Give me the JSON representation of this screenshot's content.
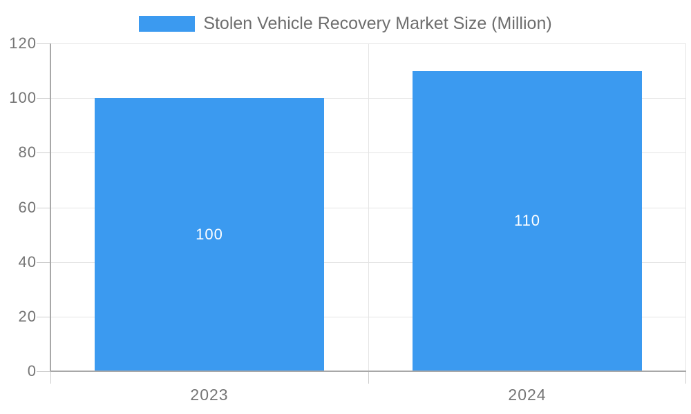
{
  "chart_data": {
    "type": "bar",
    "title": "Stolen Vehicle Recovery Market Size (Million)",
    "categories": [
      "2023",
      "2024"
    ],
    "series": [
      {
        "name": "Stolen Vehicle Recovery Market Size (Million)",
        "values": [
          100,
          110
        ]
      }
    ],
    "data_labels": [
      "100",
      "110"
    ],
    "xlabel": "",
    "ylabel": "",
    "ylim": [
      0,
      120
    ],
    "yticks": [
      0,
      20,
      40,
      60,
      80,
      100,
      120
    ],
    "ytick_labels": [
      "0",
      "20",
      "40",
      "60",
      "80",
      "100",
      "120"
    ],
    "grid": {
      "horizontal": true,
      "vertical_category_boundaries": true
    },
    "legend_position": "top-center",
    "colors": {
      "bar": "#3b9af0",
      "data_label": "#ffffff",
      "axis_line": "#a8a8a8",
      "gridline": "#e4e4e4",
      "tick": "#cccccc",
      "tick_label": "#757575",
      "legend_text": "#6e6e6e",
      "background": "#ffffff"
    }
  }
}
